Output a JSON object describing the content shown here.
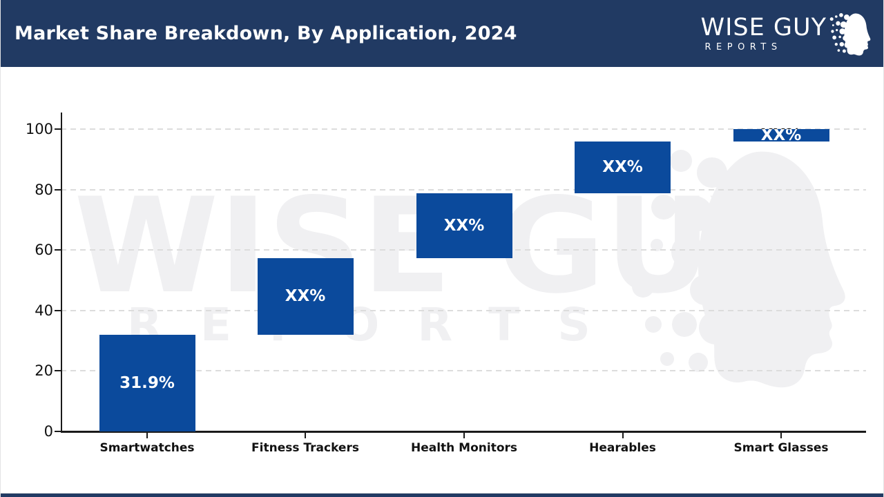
{
  "header": {
    "title": "Market Share Breakdown, By Application, 2024",
    "brand": {
      "line1": "WISE GUY",
      "line2": "REPORTS"
    }
  },
  "watermark": {
    "line1": "WISE GUY",
    "line2": "REPORTS"
  },
  "colors": {
    "header_navy": "#213a63",
    "bar_blue": "#0b4a9c",
    "axis_black": "#1a1a1a",
    "gridline_gray": "#dcdcdc",
    "watermark_gray": "#f0f0f2",
    "label_white": "#ffffff"
  },
  "chart_data": {
    "type": "bar",
    "subtype": "waterfall-segments",
    "title": "Market Share Breakdown, By Application, 2024",
    "xlabel": "",
    "ylabel": "",
    "categories": [
      "Smartwatches",
      "Fitness Trackers",
      "Health Monitors",
      "Hearables",
      "Smart Glasses"
    ],
    "segments": [
      {
        "category": "Smartwatches",
        "start": 0,
        "end": 31.9,
        "size": 31.9,
        "label": "31.9%"
      },
      {
        "category": "Fitness Trackers",
        "start": 31.9,
        "end": 57.4,
        "size": 25.5,
        "label": "XX%"
      },
      {
        "category": "Health Monitors",
        "start": 57.4,
        "end": 78.8,
        "size": 21.4,
        "label": "XX%"
      },
      {
        "category": "Hearables",
        "start": 78.8,
        "end": 96.0,
        "size": 17.2,
        "label": "XX%"
      },
      {
        "category": "Smart Glasses",
        "start": 96.0,
        "end": 100.0,
        "size": 4.0,
        "label": "XX%"
      }
    ],
    "yticks": [
      0,
      20,
      40,
      60,
      80,
      100
    ],
    "ylim": [
      0,
      105
    ],
    "grid": "horizontal dashed",
    "legend": "none",
    "bar_color": "#0b4a9c",
    "label_note": "XX% labels are placeholder values in source image"
  }
}
